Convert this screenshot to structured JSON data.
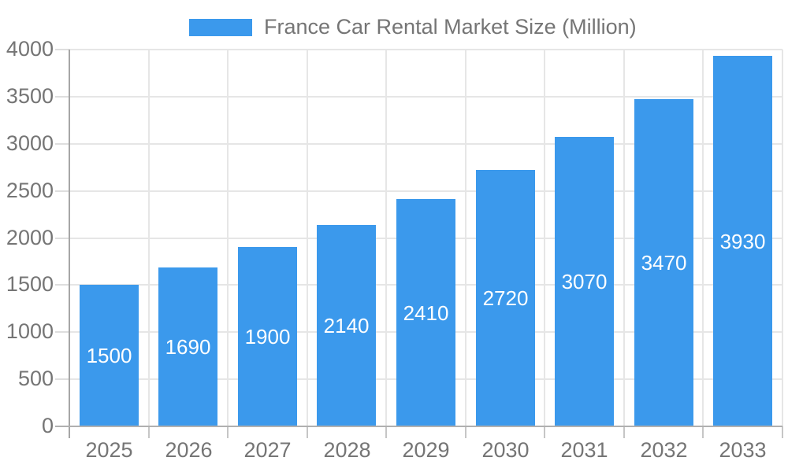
{
  "legend": {
    "label": "France Car Rental Market Size (Million)"
  },
  "colors": {
    "bar": "#3B99EC",
    "bar_label": "#FFFFFF",
    "axis_label": "#757575",
    "legend_text": "#757575",
    "grid": "#E6E6E6",
    "y_tick": "#DEDEDE",
    "x_tick": "#C6C6C6",
    "axis_line": "#A6A6A6",
    "baseline": "#B0B0B0",
    "background": "#FFFFFF"
  },
  "chart_data": {
    "type": "bar",
    "title": "France Car Rental Market Size (Million)",
    "categories": [
      "2025",
      "2026",
      "2027",
      "2028",
      "2029",
      "2030",
      "2031",
      "2032",
      "2033"
    ],
    "values": [
      1500,
      1690,
      1900,
      2140,
      2410,
      2720,
      3070,
      3470,
      3930
    ],
    "series": [
      {
        "name": "France Car Rental Market Size (Million)",
        "values": [
          1500,
          1690,
          1900,
          2140,
          2410,
          2720,
          3070,
          3470,
          3930
        ]
      }
    ],
    "xlabel": "",
    "ylabel": "",
    "ylim": [
      0,
      4000
    ],
    "yticks": [
      0,
      500,
      1000,
      1500,
      2000,
      2500,
      3000,
      3500,
      4000
    ],
    "grid": true,
    "legend_position": "top-center",
    "bar_value_labels": "inside-center"
  }
}
